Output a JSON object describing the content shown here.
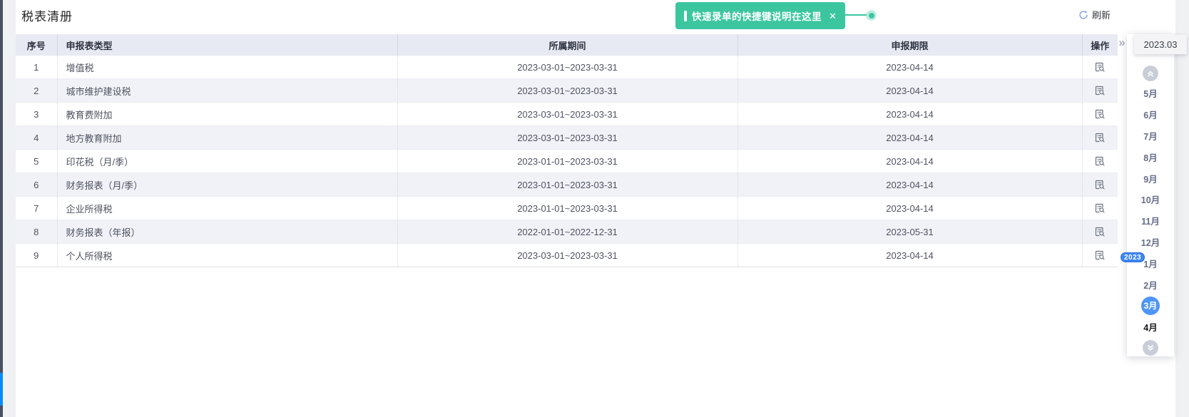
{
  "page": {
    "title": "税表清册"
  },
  "toolbar": {
    "refresh_label": "刷新"
  },
  "tooltip": {
    "text": "快速录单的快捷键说明在这里",
    "close_icon": "✕",
    "accent_color": "#3cc6a0"
  },
  "table": {
    "headers": {
      "index": "序号",
      "type": "申报表类型",
      "period": "所属期间",
      "deadline": "申报期限",
      "action": "操作"
    },
    "rows": [
      {
        "index": "1",
        "type": "增值税",
        "period": "2023-03-01~2023-03-31",
        "deadline": "2023-04-14"
      },
      {
        "index": "2",
        "type": "城市维护建设税",
        "period": "2023-03-01~2023-03-31",
        "deadline": "2023-04-14"
      },
      {
        "index": "3",
        "type": "教育费附加",
        "period": "2023-03-01~2023-03-31",
        "deadline": "2023-04-14"
      },
      {
        "index": "4",
        "type": "地方教育附加",
        "period": "2023-03-01~2023-03-31",
        "deadline": "2023-04-14"
      },
      {
        "index": "5",
        "type": "印花税（月/季）",
        "period": "2023-01-01~2023-03-31",
        "deadline": "2023-04-14"
      },
      {
        "index": "6",
        "type": "财务报表（月/季）",
        "period": "2023-01-01~2023-03-31",
        "deadline": "2023-04-14"
      },
      {
        "index": "7",
        "type": "企业所得税",
        "period": "2023-01-01~2023-03-31",
        "deadline": "2023-04-14"
      },
      {
        "index": "8",
        "type": "财务报表（年报）",
        "period": "2022-01-01~2022-12-31",
        "deadline": "2023-05-31"
      },
      {
        "index": "9",
        "type": "个人所得税",
        "period": "2023-03-01~2023-03-31",
        "deadline": "2023-04-14"
      }
    ]
  },
  "month_panel": {
    "current_period": "2023.03",
    "collapse_icon": "»",
    "year_badge": "2023",
    "selected_color": "#4f95f7",
    "badge_color": "#3d87f5",
    "months": [
      {
        "label": "5月"
      },
      {
        "label": "6月"
      },
      {
        "label": "7月"
      },
      {
        "label": "8月"
      },
      {
        "label": "9月"
      },
      {
        "label": "10月"
      },
      {
        "label": "11月"
      },
      {
        "label": "12月"
      },
      {
        "label": "1月"
      },
      {
        "label": "2月"
      },
      {
        "label": "3月",
        "selected": true
      },
      {
        "label": "4月",
        "emphasis": true
      }
    ]
  },
  "colors": {
    "tooltip_green": "#3cc6a0",
    "header_bg": "#e8eaf3",
    "alt_row_bg": "#f1f2f7",
    "refresh_icon_blue": "#7d9bea",
    "left_indicator_blue": "#0a8cfb"
  }
}
